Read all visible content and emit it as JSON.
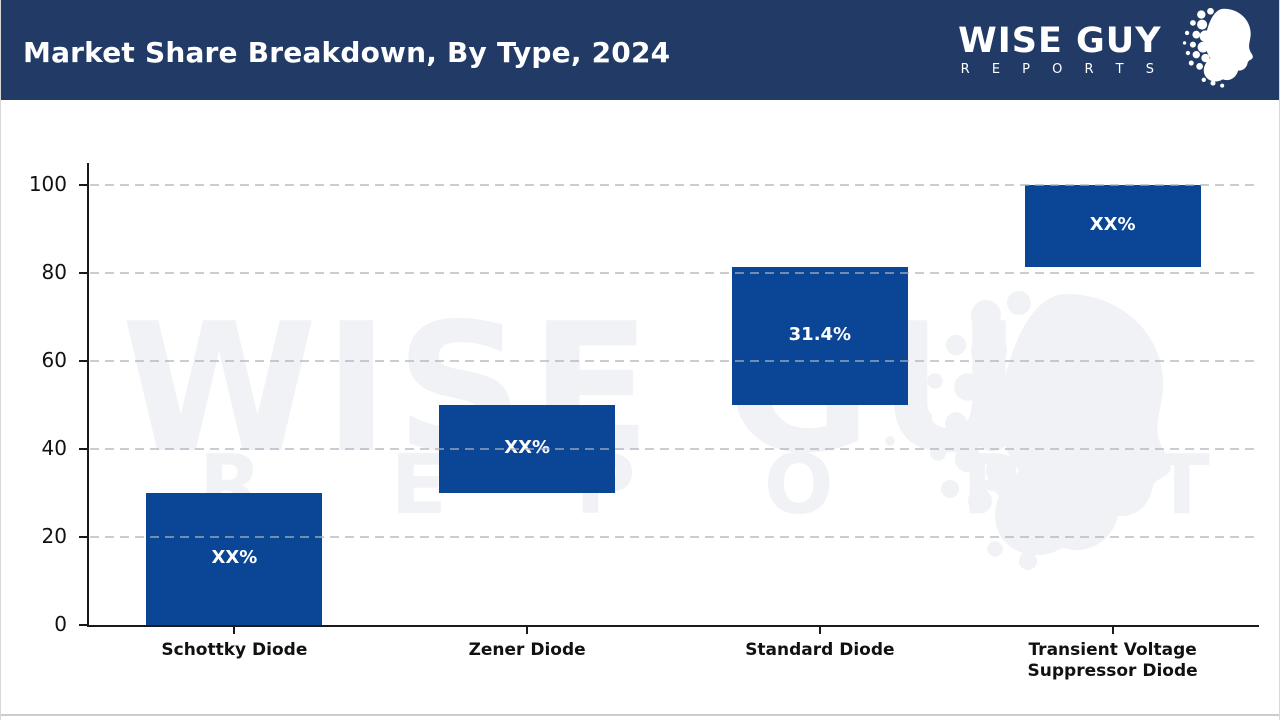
{
  "header": {
    "title": "Market Share Breakdown, By Type, 2024",
    "logo_main": "WISE GUY",
    "logo_sub": "R E P O R T S",
    "navy": "#213A66"
  },
  "watermark": {
    "main": "WISE GU",
    "sub": "R E P O R T S",
    "color": "#f1f2f5"
  },
  "chart_data": {
    "type": "bar",
    "subtype": "floating-waterfall",
    "title": "Market Share Breakdown, By Type, 2024",
    "categories": [
      "Schottky Diode",
      "Zener Diode",
      "Standard Diode",
      "Transient Voltage Suppressor Diode"
    ],
    "bars": [
      {
        "category": "Schottky Diode",
        "start": 0,
        "end": 30,
        "label": "XX%"
      },
      {
        "category": "Zener Diode",
        "start": 30,
        "end": 50,
        "label": "XX%"
      },
      {
        "category": "Standard Diode",
        "start": 50,
        "end": 81.4,
        "label": "31.4%"
      },
      {
        "category": "Transient Voltage Suppressor Diode",
        "start": 81.4,
        "end": 100,
        "label": "XX%"
      }
    ],
    "yticks": [
      0,
      20,
      40,
      60,
      80,
      100
    ],
    "ylim": [
      0,
      105
    ],
    "xlabel": "",
    "ylabel": "",
    "grid": "dashed-horizontal",
    "legend": "none",
    "bar_color": "#0B4596",
    "bar_label_color": "#ffffff",
    "axis_color": "#1a1a1a",
    "tick_label_color": "#111111"
  }
}
